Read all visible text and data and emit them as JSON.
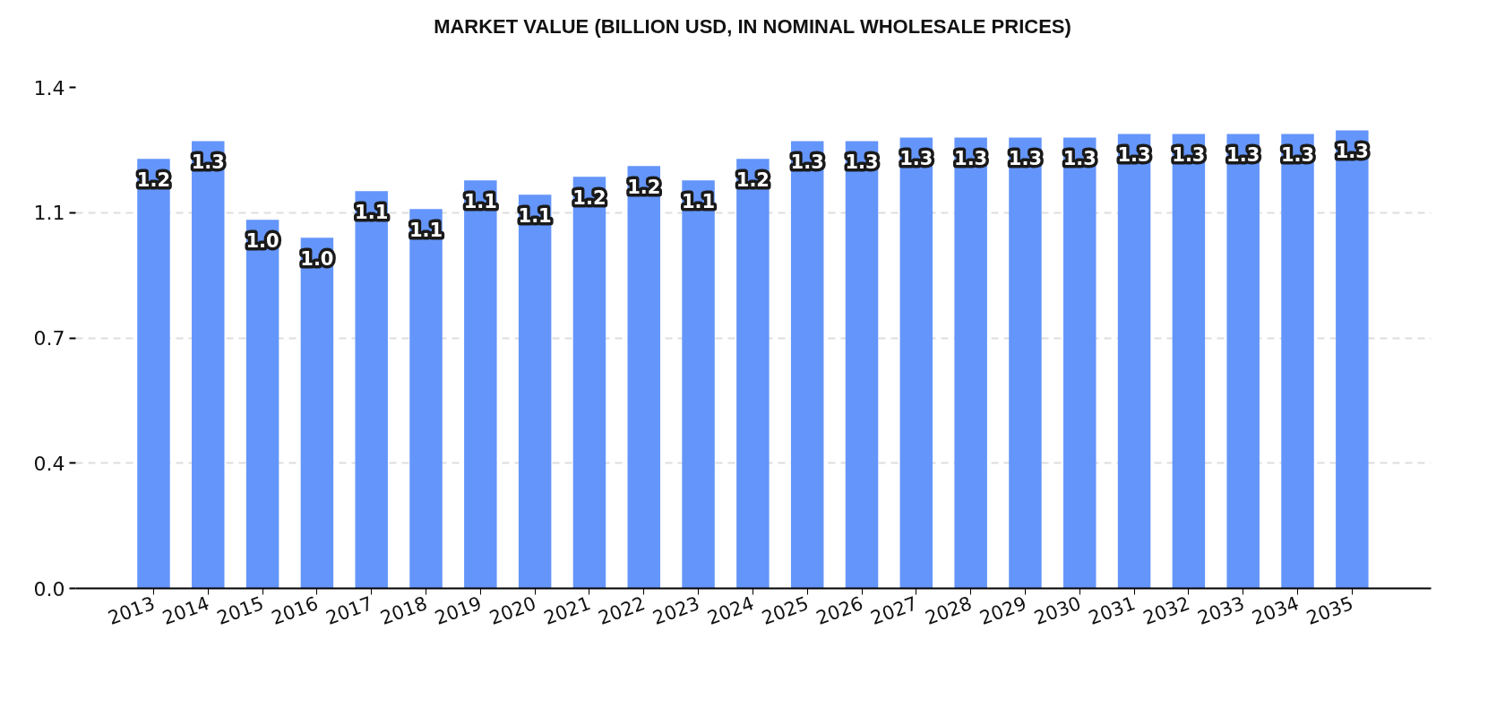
{
  "chart_data": {
    "type": "bar",
    "title": "MARKET VALUE (BILLION USD, IN NOMINAL WHOLESALE PRICES)",
    "categories": [
      "2013",
      "2014",
      "2015",
      "2016",
      "2017",
      "2018",
      "2019",
      "2020",
      "2021",
      "2022",
      "2023",
      "2024",
      "2025",
      "2026",
      "2027",
      "2028",
      "2029",
      "2030",
      "2031",
      "2032",
      "2033",
      "2034",
      "2035"
    ],
    "values": [
      1.2,
      1.25,
      1.03,
      0.98,
      1.11,
      1.06,
      1.14,
      1.1,
      1.15,
      1.18,
      1.14,
      1.2,
      1.25,
      1.25,
      1.26,
      1.26,
      1.26,
      1.26,
      1.27,
      1.27,
      1.27,
      1.27,
      1.28
    ],
    "value_labels": [
      "1.2",
      "1.3",
      "1.0",
      "1.0",
      "1.1",
      "1.1",
      "1.1",
      "1.1",
      "1.2",
      "1.2",
      "1.1",
      "1.2",
      "1.3",
      "1.3",
      "1.3",
      "1.3",
      "1.3",
      "1.3",
      "1.3",
      "1.3",
      "1.3",
      "1.3",
      "1.3"
    ],
    "color": "#6495fa",
    "ylim": [
      0,
      1.4
    ],
    "yticks": [
      {
        "value": 0,
        "label": "0.0"
      },
      {
        "value": 0.35,
        "label": "0.4"
      },
      0.7,
      {
        "value": 1.05,
        "label": "1.1"
      },
      1.4
    ],
    "grid": "y"
  }
}
